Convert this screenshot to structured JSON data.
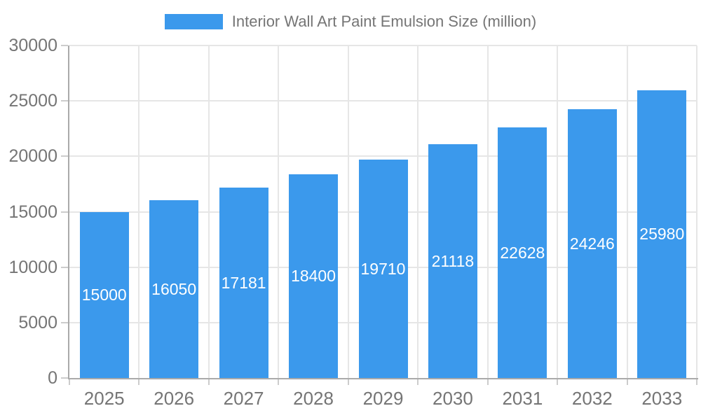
{
  "legend": {
    "label": "Interior Wall Art Paint Emulsion Size (million)"
  },
  "colors": {
    "bar": "#3B99EC",
    "axis_text": "#757575",
    "bar_label_text": "#FFFFFF",
    "grid_line": "#E6E6E6",
    "axis_line": "#AAAAAA",
    "tick_mark": "#CCCCCC",
    "background": "#FFFFFF"
  },
  "chart_data": {
    "type": "bar",
    "title": "Interior Wall Art Paint Emulsion Size (million)",
    "legend_entries": [
      "Interior Wall Art Paint Emulsion Size (million)"
    ],
    "legend_position": "top-center",
    "categories": [
      "2025",
      "2026",
      "2027",
      "2028",
      "2029",
      "2030",
      "2031",
      "2032",
      "2033"
    ],
    "series": [
      {
        "name": "Interior Wall Art Paint Emulsion Size (million)",
        "values": [
          15000,
          16050,
          17181,
          18400,
          19710,
          21118,
          22628,
          24246,
          25980
        ]
      }
    ],
    "data_labels": [
      "15000",
      "16050",
      "17181",
      "18400",
      "19710",
      "21118",
      "22628",
      "24246",
      "25980"
    ],
    "data_labels_visible": true,
    "data_labels_position": "inside-center",
    "xlabel": "",
    "ylabel": "",
    "ylim": [
      0,
      30000
    ],
    "yticks": [
      0,
      5000,
      10000,
      15000,
      20000,
      25000,
      30000
    ],
    "grid": true
  }
}
